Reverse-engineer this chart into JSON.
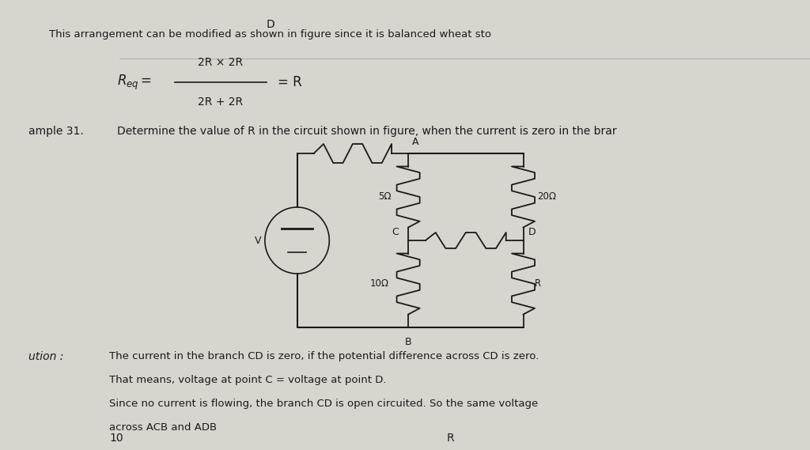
{
  "background_color": "#d8d5ce",
  "title_line1": "D",
  "title_line2": "This arrangement can be modified as shown in figure since it is balanced wheat sto",
  "formula_prefix": "R_eq =",
  "formula_num": "2R × 2R",
  "formula_den": "2R + 2R",
  "formula_result": "= R",
  "example_label": "ample 31.",
  "example_text": "Determine the value of R in the circuit shown in figure, when the current is zero in the brar",
  "solution_label": "ution :",
  "solution_line1": "The current in the branch CD is zero, if the potential difference across CD is zero.",
  "solution_line2": "That means, voltage at point C = voltage at point D.",
  "solution_line3": "Since no current is flowing, the branch CD is open circuited. So the same voltage",
  "solution_line4": "across ACB and ADB",
  "bottom_num": "10",
  "bottom_r": "R",
  "text_color": "#1a1a1a",
  "circuit_color": "#1a1a1a",
  "fig_width": 10.24,
  "fig_height": 5.69
}
